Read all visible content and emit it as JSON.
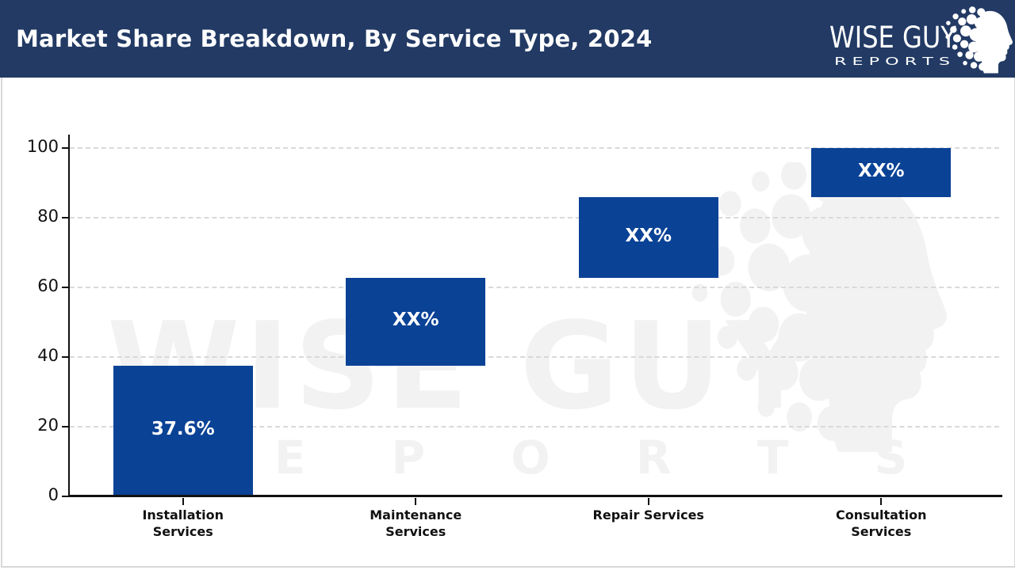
{
  "header": {
    "title": "Market Share Breakdown, By Service Type, 2024",
    "logo": {
      "name": "WISE GUY",
      "subtitle": "R E P O R T S"
    }
  },
  "watermark": {
    "name": "WISE GUY",
    "subtitle": "R E P O R T S"
  },
  "colors": {
    "header_bg": "#223A64",
    "title_text": "#FFFFFF",
    "bar_fill": "#0A4296",
    "bar_label_text": "#FFFFFF",
    "axis_text": "#111111",
    "axis_line": "#111111",
    "gridline": "#D9D9D9",
    "watermark": "#F2F2F2",
    "card_border": "#D8D8D8"
  },
  "chart_data": {
    "type": "bar",
    "variant": "waterfall",
    "title": "Market Share Breakdown, By Service Type, 2024",
    "xlabel": "",
    "ylabel": "",
    "ylim": [
      0,
      100
    ],
    "yticks": [
      0,
      20,
      40,
      60,
      80,
      100
    ],
    "grid": "horizontal-dashed",
    "legend": null,
    "categories": [
      "Installation Services",
      "Maintenance Services",
      "Repair Services",
      "Consultation Services"
    ],
    "category_label_lines": [
      [
        "Installation",
        "Services"
      ],
      [
        "Maintenance",
        "Services"
      ],
      [
        "Repair Services"
      ],
      [
        "Consultation",
        "Services"
      ]
    ],
    "segments": [
      {
        "category": "Installation Services",
        "start": 0,
        "end": 37.6,
        "label": "37.6%"
      },
      {
        "category": "Maintenance Services",
        "start": 37.6,
        "end": 62.8,
        "label": "XX%"
      },
      {
        "category": "Repair Services",
        "start": 62.8,
        "end": 86.0,
        "label": "XX%"
      },
      {
        "category": "Consultation Services",
        "start": 86.0,
        "end": 100.0,
        "label": "XX%"
      }
    ]
  }
}
